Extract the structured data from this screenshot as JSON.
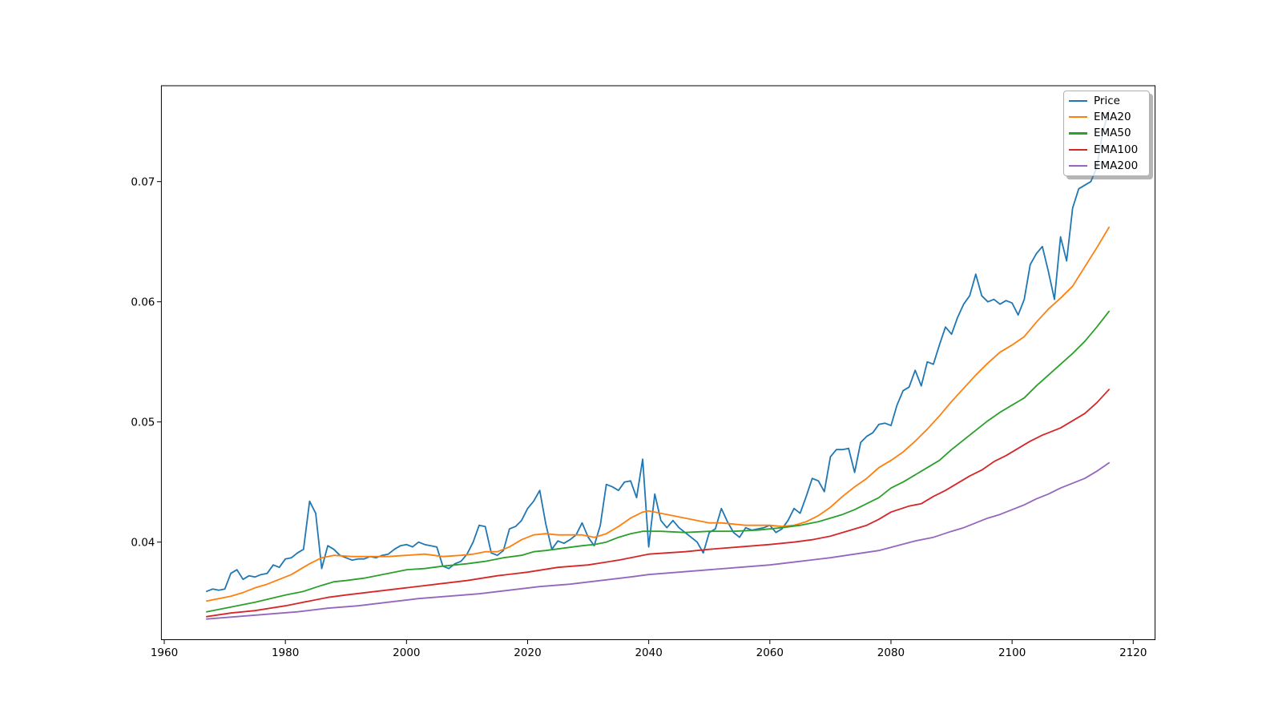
{
  "window": {
    "background": "#ffffff"
  },
  "chart_data": {
    "type": "line",
    "title": "",
    "xlabel": "",
    "ylabel": "",
    "grid": false,
    "xlim": [
      1959.5,
      2123.6
    ],
    "ylim": [
      0.0318,
      0.0782
    ],
    "x_ticks": [
      {
        "value": 1960,
        "label": "1960"
      },
      {
        "value": 1980,
        "label": "1980"
      },
      {
        "value": 2000,
        "label": "2000"
      },
      {
        "value": 2020,
        "label": "2020"
      },
      {
        "value": 2040,
        "label": "2040"
      },
      {
        "value": 2060,
        "label": "2060"
      },
      {
        "value": 2080,
        "label": "2080"
      },
      {
        "value": 2100,
        "label": "2100"
      },
      {
        "value": 2120,
        "label": "2120"
      }
    ],
    "y_ticks": [
      {
        "value": 0.04,
        "label": "0.04"
      },
      {
        "value": 0.05,
        "label": "0.05"
      },
      {
        "value": 0.06,
        "label": "0.06"
      },
      {
        "value": 0.07,
        "label": "0.07"
      }
    ],
    "legend": {
      "position": "upper right",
      "entries": [
        {
          "label": "Price",
          "color": "#1f77b4"
        },
        {
          "label": "EMA20",
          "color": "#ff7f0e"
        },
        {
          "label": "EMA50",
          "color": "#2ca02c"
        },
        {
          "label": "EMA100",
          "color": "#d62728"
        },
        {
          "label": "EMA200",
          "color": "#9467bd"
        }
      ]
    },
    "series": [
      {
        "name": "Price",
        "color": "#1f77b4",
        "x_start": 1967,
        "x_step": 1,
        "values": [
          0.0359,
          0.0361,
          0.036,
          0.0361,
          0.0374,
          0.0377,
          0.0369,
          0.0372,
          0.0371,
          0.0373,
          0.0374,
          0.0381,
          0.0379,
          0.0386,
          0.0387,
          0.0391,
          0.0394,
          0.0434,
          0.0424,
          0.0378,
          0.0397,
          0.0394,
          0.0389,
          0.0387,
          0.0385,
          0.0386,
          0.0386,
          0.0388,
          0.0387,
          0.0389,
          0.039,
          0.0394,
          0.0397,
          0.0398,
          0.0396,
          0.04,
          0.0398,
          0.0397,
          0.0396,
          0.038,
          0.0378,
          0.0382,
          0.0384,
          0.039,
          0.04,
          0.0414,
          0.0413,
          0.0391,
          0.0389,
          0.0393,
          0.0411,
          0.0413,
          0.0418,
          0.0428,
          0.0434,
          0.0443,
          0.0415,
          0.0394,
          0.0401,
          0.0399,
          0.0402,
          0.0406,
          0.0416,
          0.0404,
          0.0397,
          0.0414,
          0.0448,
          0.0446,
          0.0443,
          0.045,
          0.0451,
          0.0437,
          0.0469,
          0.0396,
          0.044,
          0.0418,
          0.0412,
          0.0418,
          0.0412,
          0.0408,
          0.0404,
          0.04,
          0.0391,
          0.0408,
          0.0411,
          0.0428,
          0.0417,
          0.0408,
          0.0404,
          0.0412,
          0.041,
          0.0411,
          0.0412,
          0.0414,
          0.0408,
          0.0411,
          0.0418,
          0.0428,
          0.0424,
          0.0438,
          0.0453,
          0.0451,
          0.0442,
          0.0471,
          0.0477,
          0.0477,
          0.0478,
          0.0458,
          0.0483,
          0.0488,
          0.0491,
          0.0498,
          0.0499,
          0.0497,
          0.0514,
          0.0526,
          0.0529,
          0.0543,
          0.053,
          0.055,
          0.0548,
          0.0564,
          0.0579,
          0.0573,
          0.0587,
          0.0598,
          0.0605,
          0.0623,
          0.0605,
          0.06,
          0.0602,
          0.0598,
          0.0601,
          0.0599,
          0.0589,
          0.0602,
          0.0631,
          0.064,
          0.0646,
          0.0625,
          0.0602,
          0.0654,
          0.0634,
          0.0678,
          0.0694,
          0.0697,
          0.07,
          0.0712,
          0.0742,
          0.0759
        ]
      },
      {
        "name": "EMA20",
        "color": "#ff7f0e",
        "points": [
          [
            1967,
            0.0351
          ],
          [
            1969,
            0.0353
          ],
          [
            1971,
            0.0355
          ],
          [
            1973,
            0.0358
          ],
          [
            1975,
            0.0362
          ],
          [
            1977,
            0.0365
          ],
          [
            1979,
            0.0369
          ],
          [
            1981,
            0.0373
          ],
          [
            1983,
            0.0379
          ],
          [
            1984,
            0.0382
          ],
          [
            1986,
            0.0387
          ],
          [
            1988,
            0.0389
          ],
          [
            1991,
            0.0388
          ],
          [
            1994,
            0.0388
          ],
          [
            1997,
            0.0388
          ],
          [
            2000,
            0.0389
          ],
          [
            2003,
            0.039
          ],
          [
            2006,
            0.0388
          ],
          [
            2009,
            0.0389
          ],
          [
            2011,
            0.039
          ],
          [
            2013,
            0.0392
          ],
          [
            2015,
            0.0392
          ],
          [
            2017,
            0.0396
          ],
          [
            2019,
            0.0402
          ],
          [
            2021,
            0.0406
          ],
          [
            2023,
            0.0407
          ],
          [
            2025,
            0.0406
          ],
          [
            2027,
            0.0406
          ],
          [
            2029,
            0.0406
          ],
          [
            2031,
            0.0404
          ],
          [
            2033,
            0.0407
          ],
          [
            2035,
            0.0413
          ],
          [
            2037,
            0.042
          ],
          [
            2039,
            0.0425
          ],
          [
            2040,
            0.0426
          ],
          [
            2042,
            0.0424
          ],
          [
            2044,
            0.0422
          ],
          [
            2046,
            0.042
          ],
          [
            2048,
            0.0418
          ],
          [
            2050,
            0.0416
          ],
          [
            2052,
            0.0416
          ],
          [
            2054,
            0.0415
          ],
          [
            2056,
            0.0414
          ],
          [
            2058,
            0.0414
          ],
          [
            2060,
            0.0414
          ],
          [
            2062,
            0.0413
          ],
          [
            2064,
            0.0414
          ],
          [
            2066,
            0.0417
          ],
          [
            2068,
            0.0422
          ],
          [
            2070,
            0.0429
          ],
          [
            2072,
            0.0438
          ],
          [
            2074,
            0.0446
          ],
          [
            2076,
            0.0453
          ],
          [
            2078,
            0.0462
          ],
          [
            2080,
            0.0468
          ],
          [
            2082,
            0.0475
          ],
          [
            2084,
            0.0484
          ],
          [
            2086,
            0.0494
          ],
          [
            2088,
            0.0505
          ],
          [
            2090,
            0.0517
          ],
          [
            2092,
            0.0528
          ],
          [
            2094,
            0.0539
          ],
          [
            2096,
            0.0549
          ],
          [
            2098,
            0.0558
          ],
          [
            2100,
            0.0564
          ],
          [
            2102,
            0.0571
          ],
          [
            2104,
            0.0583
          ],
          [
            2106,
            0.0594
          ],
          [
            2108,
            0.0603
          ],
          [
            2110,
            0.0613
          ],
          [
            2112,
            0.0629
          ],
          [
            2114,
            0.0645
          ],
          [
            2116,
            0.0662
          ]
        ]
      },
      {
        "name": "EMA50",
        "color": "#2ca02c",
        "points": [
          [
            1967,
            0.0342
          ],
          [
            1970,
            0.0345
          ],
          [
            1975,
            0.035
          ],
          [
            1980,
            0.0356
          ],
          [
            1983,
            0.0359
          ],
          [
            1986,
            0.0364
          ],
          [
            1988,
            0.0367
          ],
          [
            1990,
            0.0368
          ],
          [
            1993,
            0.037
          ],
          [
            1996,
            0.0373
          ],
          [
            2000,
            0.0377
          ],
          [
            2003,
            0.0378
          ],
          [
            2006,
            0.038
          ],
          [
            2010,
            0.0382
          ],
          [
            2013,
            0.0384
          ],
          [
            2016,
            0.0387
          ],
          [
            2019,
            0.0389
          ],
          [
            2021,
            0.0392
          ],
          [
            2023,
            0.0393
          ],
          [
            2026,
            0.0395
          ],
          [
            2029,
            0.0397
          ],
          [
            2031,
            0.0398
          ],
          [
            2033,
            0.04
          ],
          [
            2035,
            0.0404
          ],
          [
            2037,
            0.0407
          ],
          [
            2039,
            0.0409
          ],
          [
            2042,
            0.0409
          ],
          [
            2046,
            0.0408
          ],
          [
            2050,
            0.0409
          ],
          [
            2054,
            0.0409
          ],
          [
            2058,
            0.041
          ],
          [
            2062,
            0.0412
          ],
          [
            2065,
            0.0414
          ],
          [
            2068,
            0.0417
          ],
          [
            2070,
            0.042
          ],
          [
            2072,
            0.0423
          ],
          [
            2074,
            0.0427
          ],
          [
            2076,
            0.0432
          ],
          [
            2078,
            0.0437
          ],
          [
            2080,
            0.0445
          ],
          [
            2082,
            0.045
          ],
          [
            2085,
            0.0459
          ],
          [
            2088,
            0.0468
          ],
          [
            2090,
            0.0477
          ],
          [
            2092,
            0.0485
          ],
          [
            2094,
            0.0493
          ],
          [
            2096,
            0.0501
          ],
          [
            2098,
            0.0508
          ],
          [
            2100,
            0.0514
          ],
          [
            2102,
            0.052
          ],
          [
            2104,
            0.053
          ],
          [
            2106,
            0.0539
          ],
          [
            2108,
            0.0548
          ],
          [
            2110,
            0.0557
          ],
          [
            2112,
            0.0567
          ],
          [
            2114,
            0.0579
          ],
          [
            2116,
            0.0592
          ]
        ]
      },
      {
        "name": "EMA100",
        "color": "#d62728",
        "points": [
          [
            1967,
            0.0338
          ],
          [
            1971,
            0.0341
          ],
          [
            1975,
            0.0343
          ],
          [
            1980,
            0.0347
          ],
          [
            1984,
            0.0351
          ],
          [
            1987,
            0.0354
          ],
          [
            1990,
            0.0356
          ],
          [
            1995,
            0.0359
          ],
          [
            2000,
            0.0362
          ],
          [
            2005,
            0.0365
          ],
          [
            2010,
            0.0368
          ],
          [
            2015,
            0.0372
          ],
          [
            2020,
            0.0375
          ],
          [
            2025,
            0.0379
          ],
          [
            2030,
            0.0381
          ],
          [
            2035,
            0.0385
          ],
          [
            2038,
            0.0388
          ],
          [
            2040,
            0.039
          ],
          [
            2043,
            0.0391
          ],
          [
            2046,
            0.0392
          ],
          [
            2050,
            0.0394
          ],
          [
            2055,
            0.0396
          ],
          [
            2060,
            0.0398
          ],
          [
            2064,
            0.04
          ],
          [
            2067,
            0.0402
          ],
          [
            2070,
            0.0405
          ],
          [
            2072,
            0.0408
          ],
          [
            2074,
            0.0411
          ],
          [
            2076,
            0.0414
          ],
          [
            2078,
            0.0419
          ],
          [
            2080,
            0.0425
          ],
          [
            2083,
            0.043
          ],
          [
            2085,
            0.0432
          ],
          [
            2087,
            0.0438
          ],
          [
            2089,
            0.0443
          ],
          [
            2091,
            0.0449
          ],
          [
            2093,
            0.0455
          ],
          [
            2095,
            0.046
          ],
          [
            2097,
            0.0467
          ],
          [
            2099,
            0.0472
          ],
          [
            2101,
            0.0478
          ],
          [
            2103,
            0.0484
          ],
          [
            2105,
            0.0489
          ],
          [
            2108,
            0.0495
          ],
          [
            2110,
            0.0501
          ],
          [
            2112,
            0.0507
          ],
          [
            2114,
            0.0516
          ],
          [
            2116,
            0.0527
          ]
        ]
      },
      {
        "name": "EMA200",
        "color": "#9467bd",
        "points": [
          [
            1967,
            0.0336
          ],
          [
            1972,
            0.0338
          ],
          [
            1977,
            0.034
          ],
          [
            1982,
            0.0342
          ],
          [
            1987,
            0.0345
          ],
          [
            1992,
            0.0347
          ],
          [
            1997,
            0.035
          ],
          [
            2002,
            0.0353
          ],
          [
            2007,
            0.0355
          ],
          [
            2012,
            0.0357
          ],
          [
            2017,
            0.036
          ],
          [
            2022,
            0.0363
          ],
          [
            2027,
            0.0365
          ],
          [
            2032,
            0.0368
          ],
          [
            2037,
            0.0371
          ],
          [
            2040,
            0.0373
          ],
          [
            2045,
            0.0375
          ],
          [
            2050,
            0.0377
          ],
          [
            2055,
            0.0379
          ],
          [
            2060,
            0.0381
          ],
          [
            2065,
            0.0384
          ],
          [
            2070,
            0.0387
          ],
          [
            2074,
            0.039
          ],
          [
            2078,
            0.0393
          ],
          [
            2081,
            0.0397
          ],
          [
            2084,
            0.0401
          ],
          [
            2087,
            0.0404
          ],
          [
            2090,
            0.0409
          ],
          [
            2092,
            0.0412
          ],
          [
            2094,
            0.0416
          ],
          [
            2096,
            0.042
          ],
          [
            2098,
            0.0423
          ],
          [
            2100,
            0.0427
          ],
          [
            2102,
            0.0431
          ],
          [
            2104,
            0.0436
          ],
          [
            2106,
            0.044
          ],
          [
            2108,
            0.0445
          ],
          [
            2110,
            0.0449
          ],
          [
            2112,
            0.0453
          ],
          [
            2114,
            0.0459
          ],
          [
            2116,
            0.0466
          ]
        ]
      }
    ]
  }
}
